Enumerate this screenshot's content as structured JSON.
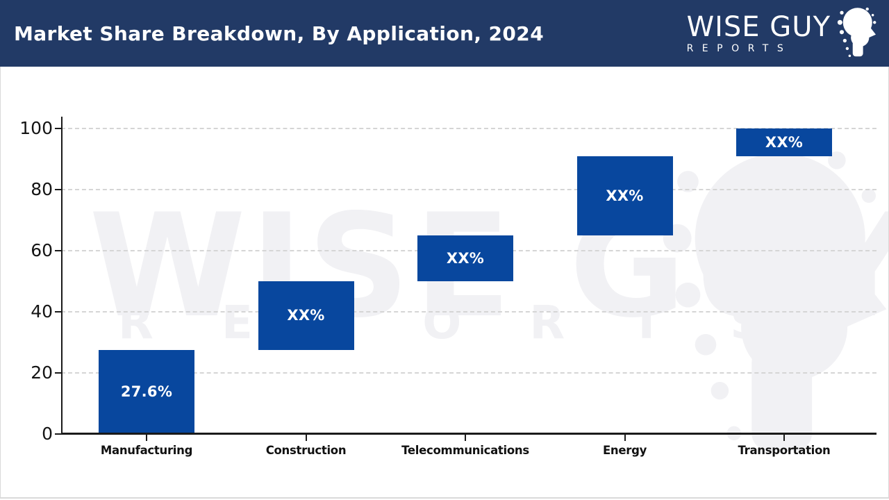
{
  "header": {
    "title": "Market Share Breakdown, By Application, 2024",
    "logo": {
      "line1": "WISE GUY",
      "line2": "REPORTS"
    }
  },
  "watermark": {
    "line1": "WISE GUY",
    "line2": "REPORTS"
  },
  "chart_data": {
    "type": "bar",
    "variant": "floating-waterfall",
    "title": "Market Share Breakdown, By Application, 2024",
    "categories": [
      "Manufacturing",
      "Construction",
      "Telecommunications",
      "Energy",
      "Transportation"
    ],
    "bars": [
      {
        "category": "Manufacturing",
        "start": 0,
        "end": 27.6,
        "label": "27.6%"
      },
      {
        "category": "Construction",
        "start": 27.6,
        "end": 50,
        "label": "XX%"
      },
      {
        "category": "Telecommunications",
        "start": 50,
        "end": 65,
        "label": "XX%"
      },
      {
        "category": "Energy",
        "start": 65,
        "end": 91,
        "label": "XX%"
      },
      {
        "category": "Transportation",
        "start": 91,
        "end": 100,
        "label": "XX%"
      }
    ],
    "yticks": [
      0,
      20,
      40,
      60,
      80,
      100
    ],
    "ylim": [
      0,
      105
    ],
    "xlabel": "",
    "ylabel": "",
    "legend": null,
    "grid": "horizontal-dashed",
    "colors": {
      "bar": "#08479E",
      "bar_label": "#ffffff",
      "header_bg": "#223A66",
      "gridline": "#d5d5d5",
      "axis": "#1a1a1a",
      "watermark": "#f1f1f4"
    }
  }
}
